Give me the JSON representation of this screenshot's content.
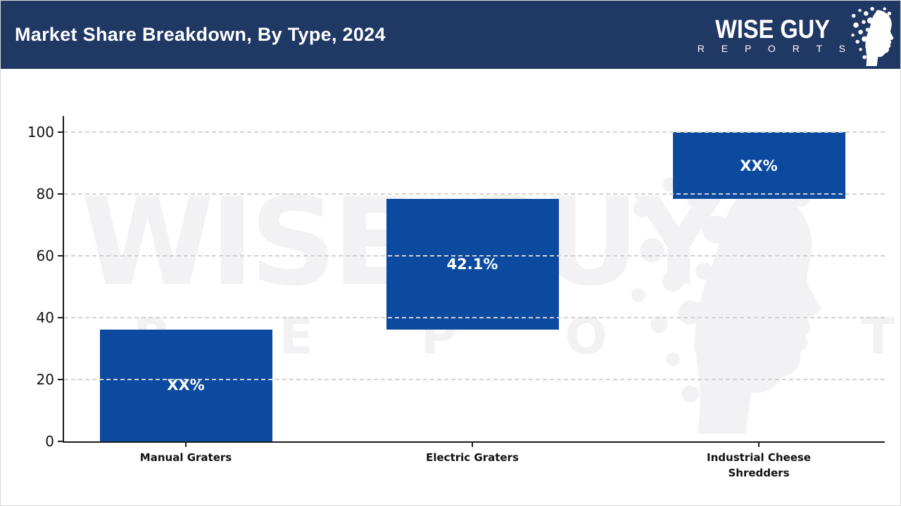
{
  "header": {
    "title": "Market Share Breakdown, By Type, 2024",
    "logo": {
      "wordmark": "WISE GUY",
      "subtitle": "R E P O R T S"
    }
  },
  "watermark": {
    "wordmark": "WISE GUY",
    "subtitle": "R E P O R T S"
  },
  "colors": {
    "header_bg": "#1f3864",
    "bar": "#0b4a9e",
    "bar_label": "#ffffff",
    "grid": "#d2d2d2",
    "axis": "#1a1a1a",
    "watermark": "#f2f2f4"
  },
  "chart_data": {
    "type": "bar",
    "variant": "floating_waterfall_segments",
    "title": "Market Share Breakdown, By Type, 2024",
    "categories": [
      "Manual Graters",
      "Electric Graters",
      "Industrial Cheese Shredders"
    ],
    "segments": [
      {
        "category": "Manual Graters",
        "from": 0,
        "to": 36.2,
        "label": "XX%",
        "masked": true
      },
      {
        "category": "Electric Graters",
        "from": 36.2,
        "to": 78.3,
        "label": "42.1%",
        "masked": false
      },
      {
        "category": "Industrial Cheese Shredders",
        "from": 78.3,
        "to": 100,
        "label": "XX%",
        "masked": true
      }
    ],
    "ylim": [
      0,
      100
    ],
    "yticks": [
      0,
      20,
      40,
      60,
      80,
      100
    ],
    "grid": {
      "horizontal": true,
      "style": "dashed"
    },
    "legend": "none",
    "bar_color": "#0b4a9e",
    "bar_label_color": "#ffffff"
  }
}
